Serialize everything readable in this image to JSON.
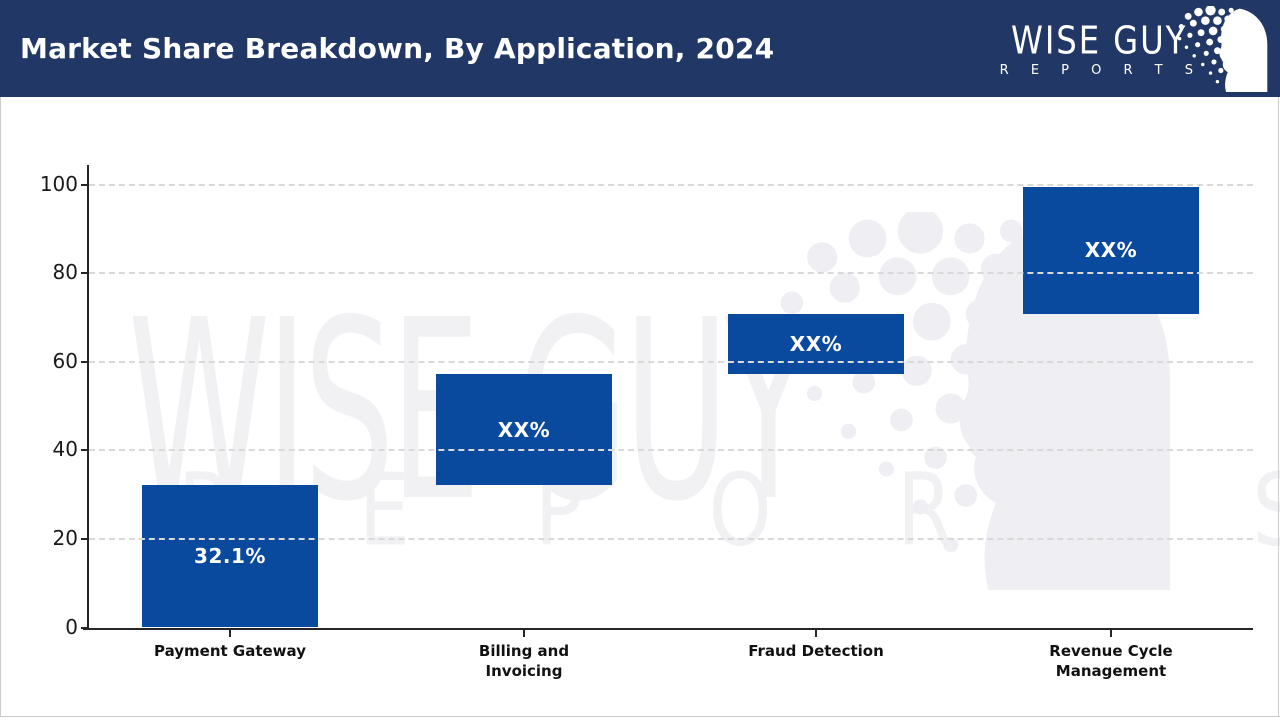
{
  "header": {
    "title": "Market Share Breakdown, By Application, 2024",
    "logo_line1": "WISE GUY",
    "logo_line2": "R E P O R T S"
  },
  "watermark": {
    "line1": "WISE GUY",
    "line2": "R E P O R T S"
  },
  "chart_data": {
    "type": "bar",
    "subtype": "waterfall",
    "title": "Market Share Breakdown, By Application, 2024",
    "categories": [
      "Payment Gateway",
      "Billing and\nInvoicing",
      "Fraud Detection",
      "Revenue Cycle\nManagement"
    ],
    "series": [
      {
        "name": "Market share (%)",
        "segments": [
          {
            "category": "Payment Gateway",
            "start": 0,
            "end": 32.1,
            "label": "32.1%"
          },
          {
            "category": "Billing and Invoicing",
            "start": 32.1,
            "end": 57.3,
            "label": "XX%"
          },
          {
            "category": "Fraud Detection",
            "start": 57.3,
            "end": 70.9,
            "label": "XX%"
          },
          {
            "category": "Revenue Cycle Management",
            "start": 70.9,
            "end": 99.6,
            "label": "XX%"
          }
        ]
      }
    ],
    "yticks": [
      0,
      20,
      40,
      60,
      80,
      100
    ],
    "ylim": [
      0,
      105
    ],
    "xlabel": "",
    "ylabel": "",
    "grid": "horizontal-dashed",
    "legend_position": "none",
    "colors": {
      "bar": "#0A4A9E",
      "bar_label": "#FFFFFF",
      "grid": "#D9D9D9",
      "axis": "#262626",
      "header_bg": "#213766",
      "watermark": "#F1F1F4"
    }
  }
}
